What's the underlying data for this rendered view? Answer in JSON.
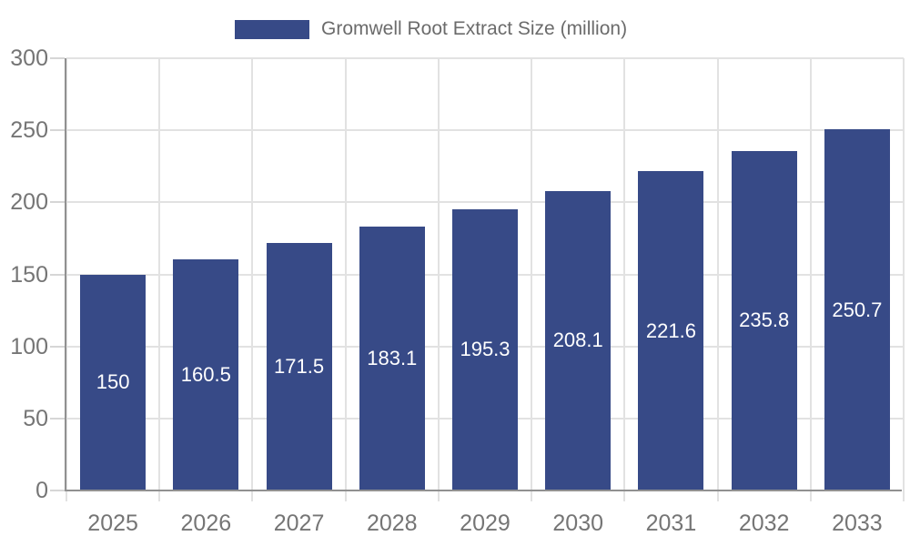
{
  "legend": {
    "label": "Gromwell Root Extract Size (million)"
  },
  "colors": {
    "bar": "#374a87",
    "grid": "#e2e2e2",
    "tick": "#d6d6d6",
    "axis": "#919191",
    "axis_text": "#757575",
    "value_label_text": "#ffffff",
    "legend_text": "#6b6b6b"
  },
  "chart_data": {
    "type": "bar",
    "title": "",
    "xlabel": "",
    "ylabel": "",
    "categories": [
      "2025",
      "2026",
      "2027",
      "2028",
      "2029",
      "2030",
      "2031",
      "2032",
      "2033"
    ],
    "series": [
      {
        "name": "Gromwell Root Extract Size (million)",
        "values": [
          150,
          160.5,
          171.5,
          183.1,
          195.3,
          208.1,
          221.6,
          235.8,
          250.7
        ]
      }
    ],
    "value_labels": [
      "150",
      "160.5",
      "171.5",
      "183.1",
      "195.3",
      "208.1",
      "221.6",
      "235.8",
      "250.7"
    ],
    "ylim": [
      0,
      300
    ],
    "yticks": [
      0,
      50,
      100,
      150,
      200,
      250,
      300
    ],
    "grid": true,
    "legend_position": "top-center",
    "value_label_position": "inside-center"
  }
}
